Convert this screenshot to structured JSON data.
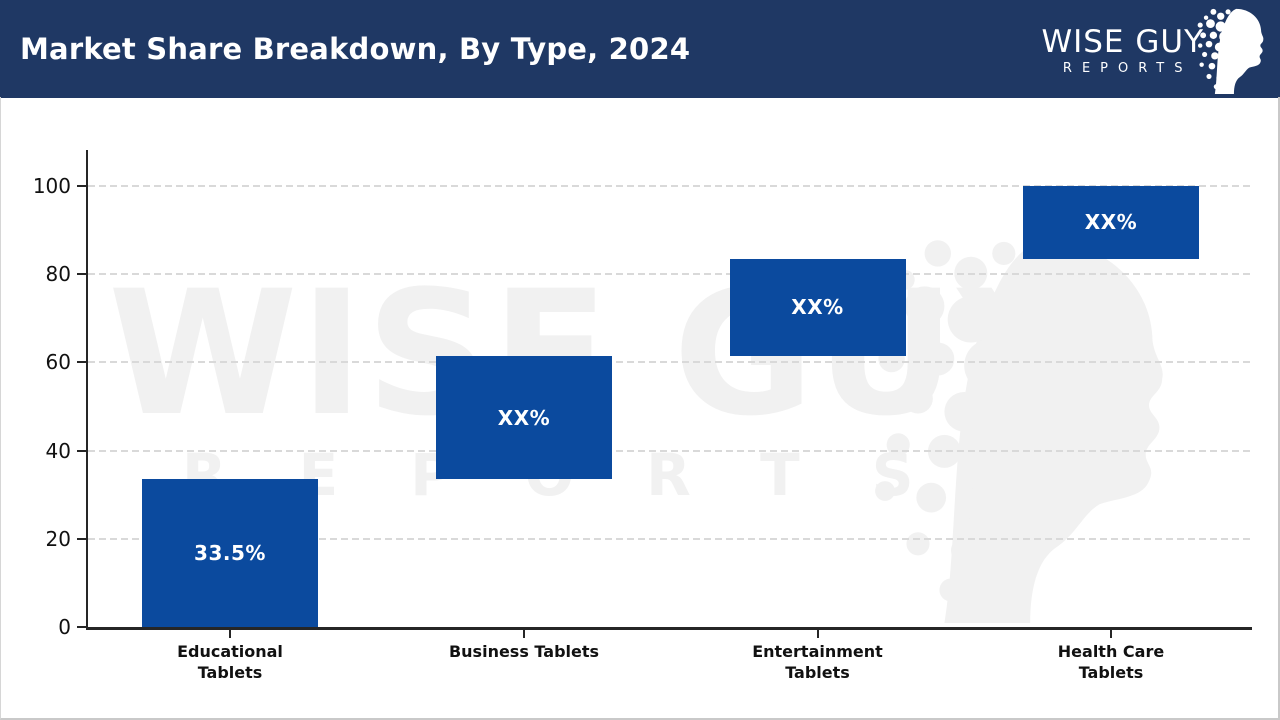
{
  "header": {
    "title": "Market Share Breakdown, By Type, 2024",
    "logo_line1": "WISE GUY",
    "logo_line2": "REPORTS"
  },
  "watermark": {
    "line1": "WISE GUY",
    "line2": "REPORTS"
  },
  "colors": {
    "header_bg": "#1f3864",
    "bar": "#0b4a9e",
    "grid": "#d9d9d9",
    "axis": "#262626",
    "tick_text": "#111111",
    "value_label_text": "#ffffff",
    "watermark": "#f1f1f1",
    "page_bg": "#ffffff"
  },
  "chart_data": {
    "type": "bar",
    "variant": "waterfall (each floating bar starts where the previous bar's top ended)",
    "title": "Market Share Breakdown, By Type, 2024",
    "categories": [
      "Educational Tablets",
      "Business Tablets",
      "Entertainment Tablets",
      "Health Care Tablets"
    ],
    "series": [
      {
        "category": "Educational Tablets",
        "tick_label": "Educational\nTablets",
        "range": [
          0,
          33.5
        ],
        "span": 33.5,
        "value_label": "33.5%"
      },
      {
        "category": "Business Tablets",
        "tick_label": "Business Tablets",
        "range": [
          33.5,
          61.5
        ],
        "span": 28,
        "value_label": "XX%"
      },
      {
        "category": "Entertainment Tablets",
        "tick_label": "Entertainment\nTablets",
        "range": [
          61.5,
          83.5
        ],
        "span": 22,
        "value_label": "XX%"
      },
      {
        "category": "Health Care Tablets",
        "tick_label": "Health Care\nTablets",
        "range": [
          83.5,
          100
        ],
        "span": 16.5,
        "value_label": "XX%"
      }
    ],
    "yticks": [
      0,
      20,
      40,
      60,
      80,
      100
    ],
    "ylim": [
      0,
      108
    ],
    "xlabel": "",
    "ylabel": "",
    "grid": "horizontal dashed",
    "legend": "none"
  }
}
